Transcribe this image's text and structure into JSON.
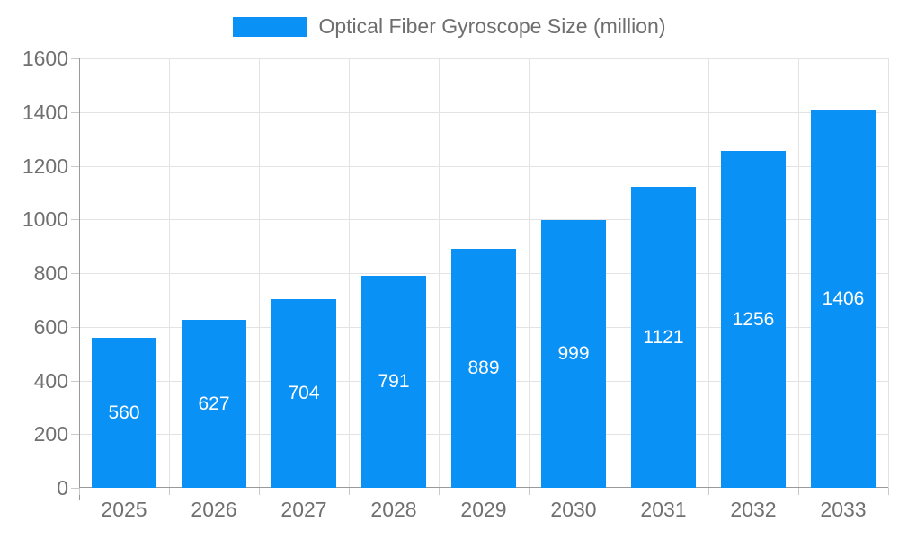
{
  "legend": {
    "label": "Optical Fiber Gyroscope Size (million)"
  },
  "chart_data": {
    "type": "bar",
    "title": "Optical Fiber Gyroscope Size (million)",
    "series_name": "Optical Fiber Gyroscope Size (million)",
    "categories": [
      "2025",
      "2026",
      "2027",
      "2028",
      "2029",
      "2030",
      "2031",
      "2032",
      "2033"
    ],
    "values": [
      560,
      627,
      704,
      791,
      889,
      999,
      1121,
      1256,
      1406
    ],
    "value_labels": [
      "560",
      "627",
      "704",
      "791",
      "889",
      "999",
      "1121",
      "1256",
      "1406"
    ],
    "xlabel": "",
    "ylabel": "",
    "ylim": [
      0,
      1600
    ],
    "ytick_step": 200,
    "yticks": [
      "0",
      "200",
      "400",
      "600",
      "800",
      "1000",
      "1200",
      "1400",
      "1600"
    ],
    "grid": true,
    "legend_position": "top-center",
    "value_label_position": "inside-center",
    "colors": {
      "bar": "#0a91f5",
      "grid_line": "#e3e3e3",
      "axis_line": "#999999",
      "tick_mark": "#c9c9c9",
      "tick_text": "#707070",
      "legend_text": "#6e6e6e",
      "value_label_text": "#ffffff",
      "background": "#ffffff"
    }
  }
}
